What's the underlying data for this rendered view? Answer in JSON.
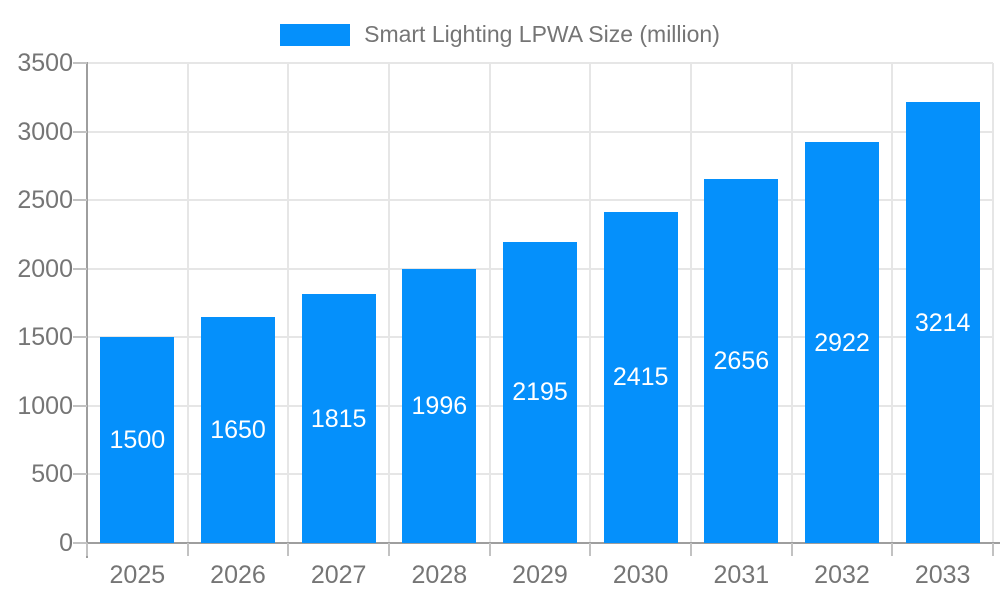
{
  "chart_data": {
    "type": "bar",
    "title": "Smart Lighting LPWA Size (million)",
    "categories": [
      "2025",
      "2026",
      "2027",
      "2028",
      "2029",
      "2030",
      "2031",
      "2032",
      "2033"
    ],
    "values": [
      1500,
      1650,
      1815,
      1996,
      2195,
      2415,
      2656,
      2922,
      3214
    ],
    "bar_value_labels": [
      "1500",
      "1650",
      "1815",
      "1996",
      "2195",
      "2415",
      "2656",
      "2922",
      "3214"
    ],
    "xlabel": "",
    "ylabel": "",
    "ylim": [
      0,
      3500
    ],
    "yticks": [
      0,
      500,
      1000,
      1500,
      2000,
      2500,
      3000,
      3500
    ],
    "ytick_labels": [
      "0",
      "500",
      "1000",
      "1500",
      "2000",
      "2500",
      "3000",
      "3500"
    ],
    "grid": "both",
    "legend_position": "top-center",
    "value_label_position": "inside-center"
  },
  "colors": {
    "bar": "#0590FB",
    "axis_text": "#757575",
    "value_text": "#FFFFFF",
    "grid_line": "#E6E6E6",
    "axis_line": "#9E9E9E",
    "tick_line": "#C2C2C2",
    "background": "#FFFFFF"
  }
}
